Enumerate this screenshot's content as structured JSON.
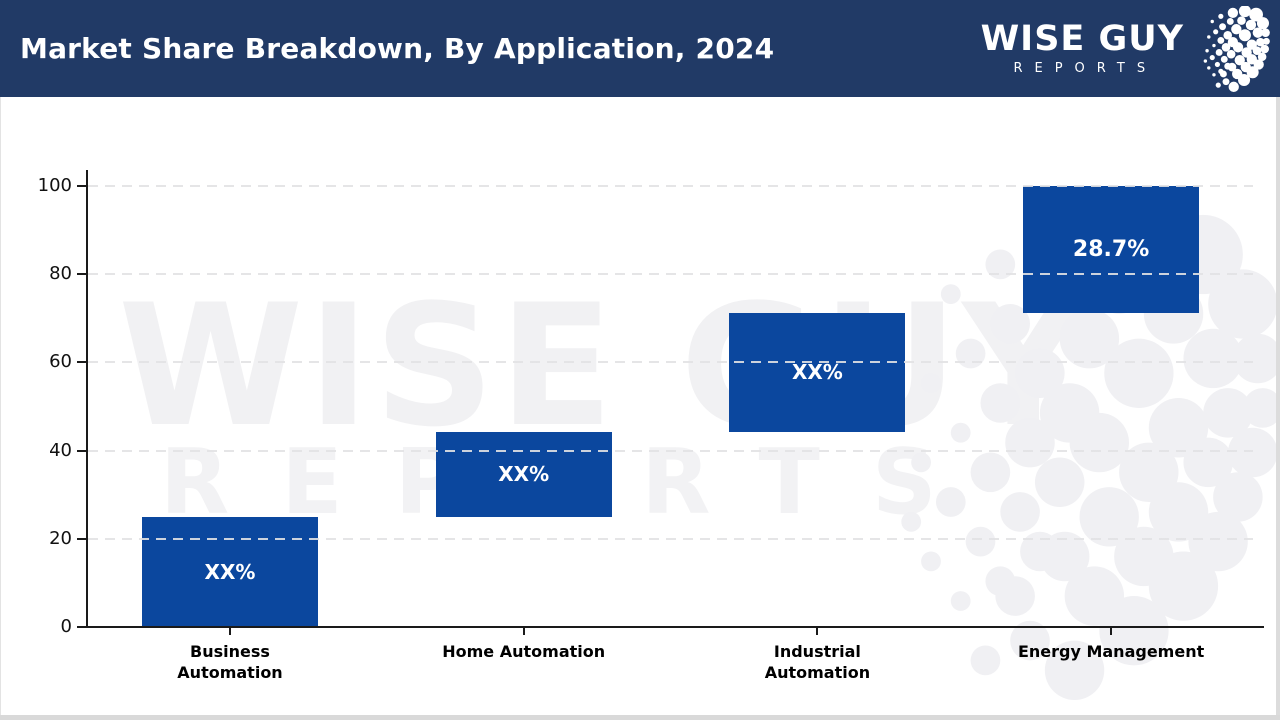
{
  "header": {
    "title": "Market Share Breakdown, By Application, 2024",
    "logo": {
      "primary": "WISE GUY",
      "secondary": "REPORTS"
    }
  },
  "chart_data": {
    "type": "bar",
    "variant": "floating-segment (waterfall style)",
    "title": "Market Share Breakdown, By Application, 2024",
    "categories": [
      "Business Automation",
      "Home Automation",
      "Industrial Automation",
      "Energy Management"
    ],
    "category_lines": [
      [
        "Business",
        "Automation"
      ],
      [
        "Home Automation"
      ],
      [
        "Industrial",
        "Automation"
      ],
      [
        "Energy Management"
      ]
    ],
    "bars": [
      {
        "category": "Business Automation",
        "start": 0,
        "end": 25,
        "label": "XX%"
      },
      {
        "category": "Home Automation",
        "start": 25,
        "end": 44.3,
        "label": "XX%"
      },
      {
        "category": "Industrial Automation",
        "start": 44.3,
        "end": 71.3,
        "label": "XX%"
      },
      {
        "category": "Energy Management",
        "start": 71.3,
        "end": 100,
        "label": "28.7%"
      }
    ],
    "xlabel": "",
    "ylabel": "",
    "ylim": [
      0,
      100
    ],
    "yticks": [
      0,
      20,
      40,
      60,
      80,
      100
    ],
    "grid": "horizontal dashed",
    "legend": "none",
    "bar_color": "#0b479e",
    "watermark": "WISE GUY REPORTS"
  },
  "colors": {
    "header_bg": "#213a66",
    "bar": "#0b479e",
    "axis": "#1a1a1a",
    "grid": "#e4e4e6",
    "title_text": "#ffffff",
    "bar_label_text": "#ffffff"
  }
}
